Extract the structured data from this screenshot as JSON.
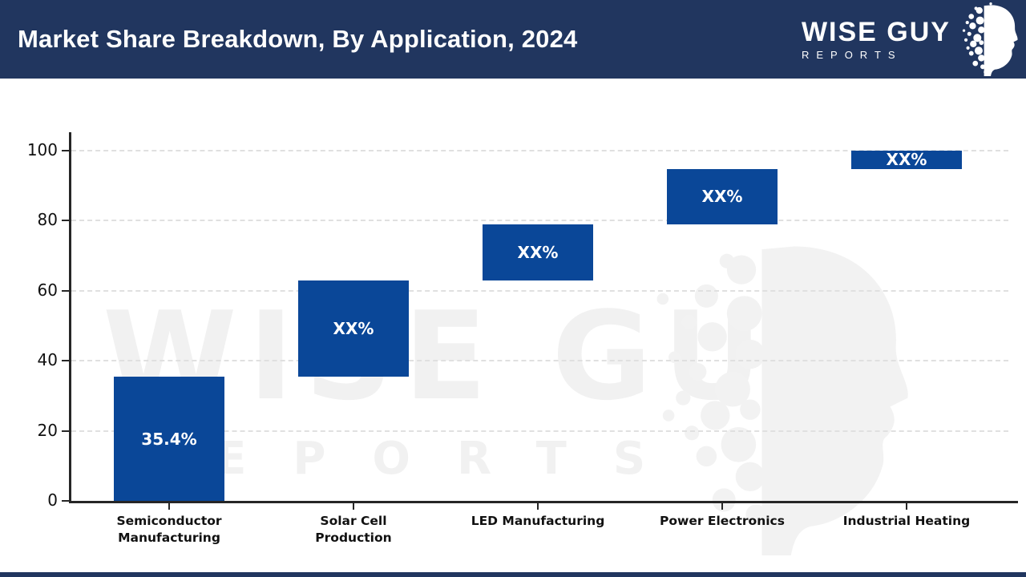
{
  "header": {
    "title": "Market Share Breakdown, By Application, 2024",
    "bg_color": "#21365f",
    "logo": {
      "wordmark": "WISE GUY",
      "subtitle": "REPORTS"
    }
  },
  "watermark": {
    "line1": "WISE GUY",
    "line2": "REPORTS"
  },
  "chart_data": {
    "type": "bar",
    "subtype": "waterfall",
    "title": "Market Share Breakdown, By Application, 2024",
    "categories": [
      "Semiconductor Manufacturing",
      "Solar Cell Production",
      "LED Manufacturing",
      "Power Electronics",
      "Industrial Heating"
    ],
    "category_label_lines": [
      [
        "Semiconductor",
        "Manufacturing"
      ],
      [
        "Solar Cell",
        "Production"
      ],
      [
        "LED Manufacturing"
      ],
      [
        "Power Electronics"
      ],
      [
        "Industrial Heating"
      ]
    ],
    "segments": [
      {
        "category": "Semiconductor Manufacturing",
        "start": 0,
        "end": 35.4,
        "label": "35.4%"
      },
      {
        "category": "Solar Cell Production",
        "start": 35.4,
        "end": 63,
        "label": "XX%"
      },
      {
        "category": "LED Manufacturing",
        "start": 63,
        "end": 79,
        "label": "XX%"
      },
      {
        "category": "Power Electronics",
        "start": 79,
        "end": 94.8,
        "label": "XX%"
      },
      {
        "category": "Industrial Heating",
        "start": 94.8,
        "end": 100,
        "label": "XX%"
      }
    ],
    "yticks": [
      0,
      20,
      40,
      60,
      80,
      100
    ],
    "ylim": [
      0,
      104
    ],
    "xlabel": "",
    "ylabel": "",
    "grid": "horizontal-dashed",
    "legend": "none",
    "bar_color": "#0a4798",
    "bar_label_color": "#ffffff"
  }
}
